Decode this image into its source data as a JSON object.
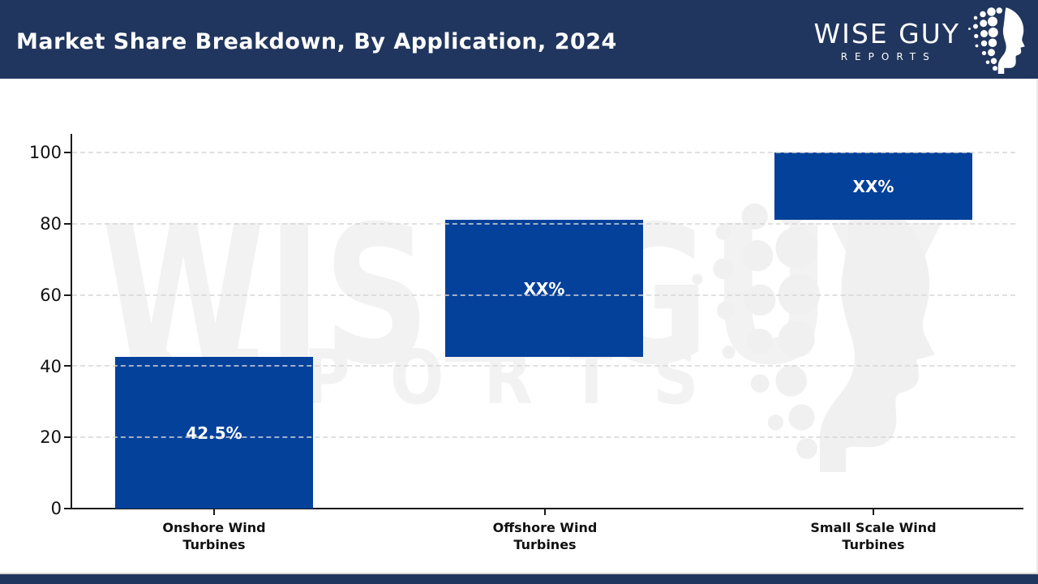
{
  "header": {
    "title": "Market Share Breakdown, By Application, 2024",
    "logo": {
      "name": "WISE GUY",
      "sub": "REPORTS"
    }
  },
  "watermark": {
    "line1": "WISE GUY",
    "line2": "REPORTS"
  },
  "chart_data": {
    "type": "bar",
    "subtype": "waterfall",
    "title": "Market Share Breakdown, By Application, 2024",
    "categories": [
      "Onshore Wind Turbines",
      "Offshore Wind Turbines",
      "Small Scale Wind Turbines"
    ],
    "category_labels": [
      {
        "line1": "Onshore Wind",
        "line2": "Turbines"
      },
      {
        "line1": "Offshore Wind",
        "line2": "Turbines"
      },
      {
        "line1": "Small Scale Wind",
        "line2": "Turbines"
      }
    ],
    "bars": [
      {
        "category": "Onshore Wind Turbines",
        "start": 0,
        "end": 42.5,
        "label": "42.5%"
      },
      {
        "category": "Offshore Wind Turbines",
        "start": 42.5,
        "end": 81,
        "label": "XX%"
      },
      {
        "category": "Small Scale Wind Turbines",
        "start": 81,
        "end": 100,
        "label": "XX%"
      }
    ],
    "yticks": [
      "0",
      "20",
      "40",
      "60",
      "80",
      "100"
    ],
    "ylim": [
      0,
      100
    ],
    "grid": "horizontal-dashed",
    "legend": "none",
    "bar_color": "#04419B",
    "bar_label_color": "#ffffff"
  },
  "colors": {
    "header_bg": "#21365E",
    "footer_bg": "#21365E",
    "bar": "#04419B",
    "grid": "#D5D5D5",
    "axis": "#1A1A1A",
    "watermark": "#F2F2F2"
  }
}
